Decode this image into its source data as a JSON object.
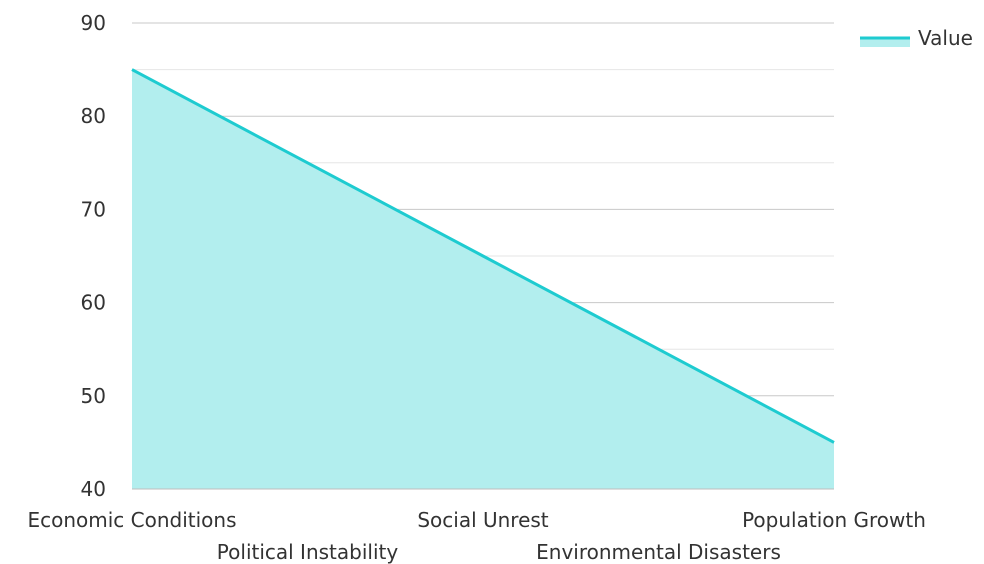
{
  "chart_data": {
    "type": "area",
    "categories": [
      "Economic Conditions",
      "Political Instability",
      "Social Unrest",
      "Environmental Disasters",
      "Population Growth"
    ],
    "series": [
      {
        "name": "Value",
        "values": [
          85,
          75,
          65,
          55,
          45
        ],
        "color": "#1ecbd0",
        "fill": "#b2eeee"
      }
    ],
    "y_ticks": [
      "90",
      "80",
      "70",
      "60",
      "50",
      "40"
    ],
    "ylim": [
      40,
      90
    ],
    "grid": true,
    "legend": "top-right"
  }
}
